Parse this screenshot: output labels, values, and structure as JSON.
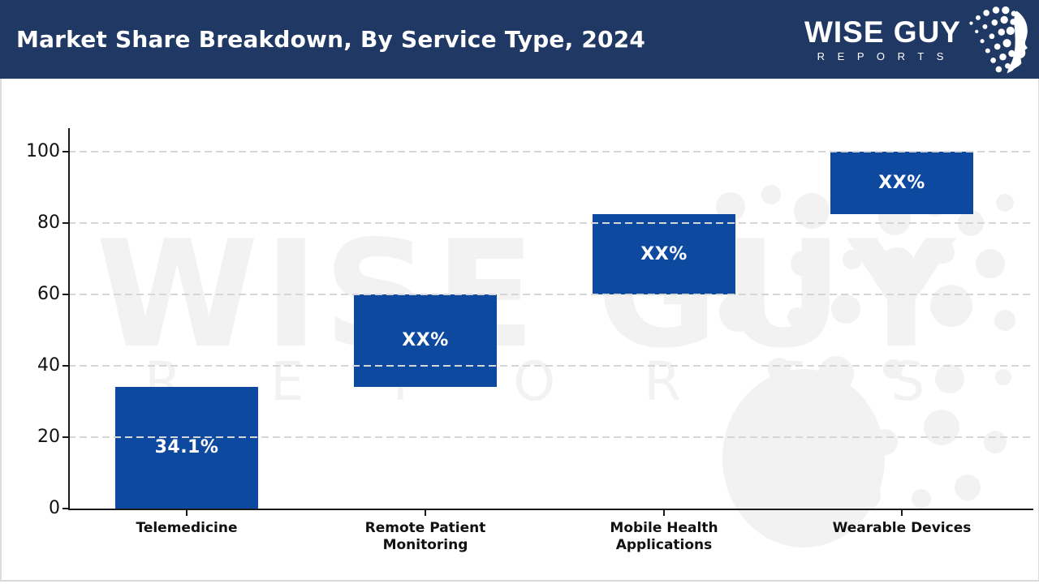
{
  "header": {
    "title": "Market Share Breakdown, By Service Type, 2024",
    "logo": {
      "name": "WISE GUY",
      "subtitle": "R E P O R T S"
    }
  },
  "watermark": {
    "line1": "WISE GUY",
    "line2": "R E P O R T S"
  },
  "chart_data": {
    "type": "bar",
    "subtype": "waterfall",
    "title": "Market Share Breakdown, By Service Type, 2024",
    "categories": [
      {
        "label": "Telemedicine",
        "lines": [
          "Telemedicine"
        ]
      },
      {
        "label": "Remote Patient Monitoring",
        "lines": [
          "Remote Patient",
          "Monitoring"
        ]
      },
      {
        "label": "Mobile Health Applications",
        "lines": [
          "Mobile Health",
          "Applications"
        ]
      },
      {
        "label": "Wearable Devices",
        "lines": [
          "Wearable Devices"
        ]
      }
    ],
    "segments": [
      {
        "category": "Telemedicine",
        "start": 0,
        "end": 34.1,
        "value": 34.1,
        "label": "34.1%"
      },
      {
        "category": "Remote Patient Monitoring",
        "start": 34.1,
        "end": 60.0,
        "value": 25.9,
        "label": "XX%"
      },
      {
        "category": "Mobile Health Applications",
        "start": 60.0,
        "end": 82.5,
        "value": 22.5,
        "label": "XX%"
      },
      {
        "category": "Wearable Devices",
        "start": 82.5,
        "end": 100.0,
        "value": 17.5,
        "label": "XX%"
      }
    ],
    "ylim": [
      0,
      100
    ],
    "yticks": [
      0,
      20,
      40,
      60,
      80,
      100
    ],
    "ytick_labels": [
      "0",
      "20",
      "40",
      "60",
      "80",
      "100"
    ],
    "xlabel": "",
    "ylabel": "",
    "grid": "horizontal-dashed",
    "legend": "none",
    "colors": {
      "bar": "#0d4a9f",
      "bar_label": "#ffffff",
      "grid": "#d6d6d6",
      "axis": "#1a1a1a",
      "tick_label": "#111111",
      "header_bg": "#203864",
      "header_text": "#ffffff",
      "watermark": "#f2f2f2",
      "frame_line": "#d9d9d9"
    }
  }
}
